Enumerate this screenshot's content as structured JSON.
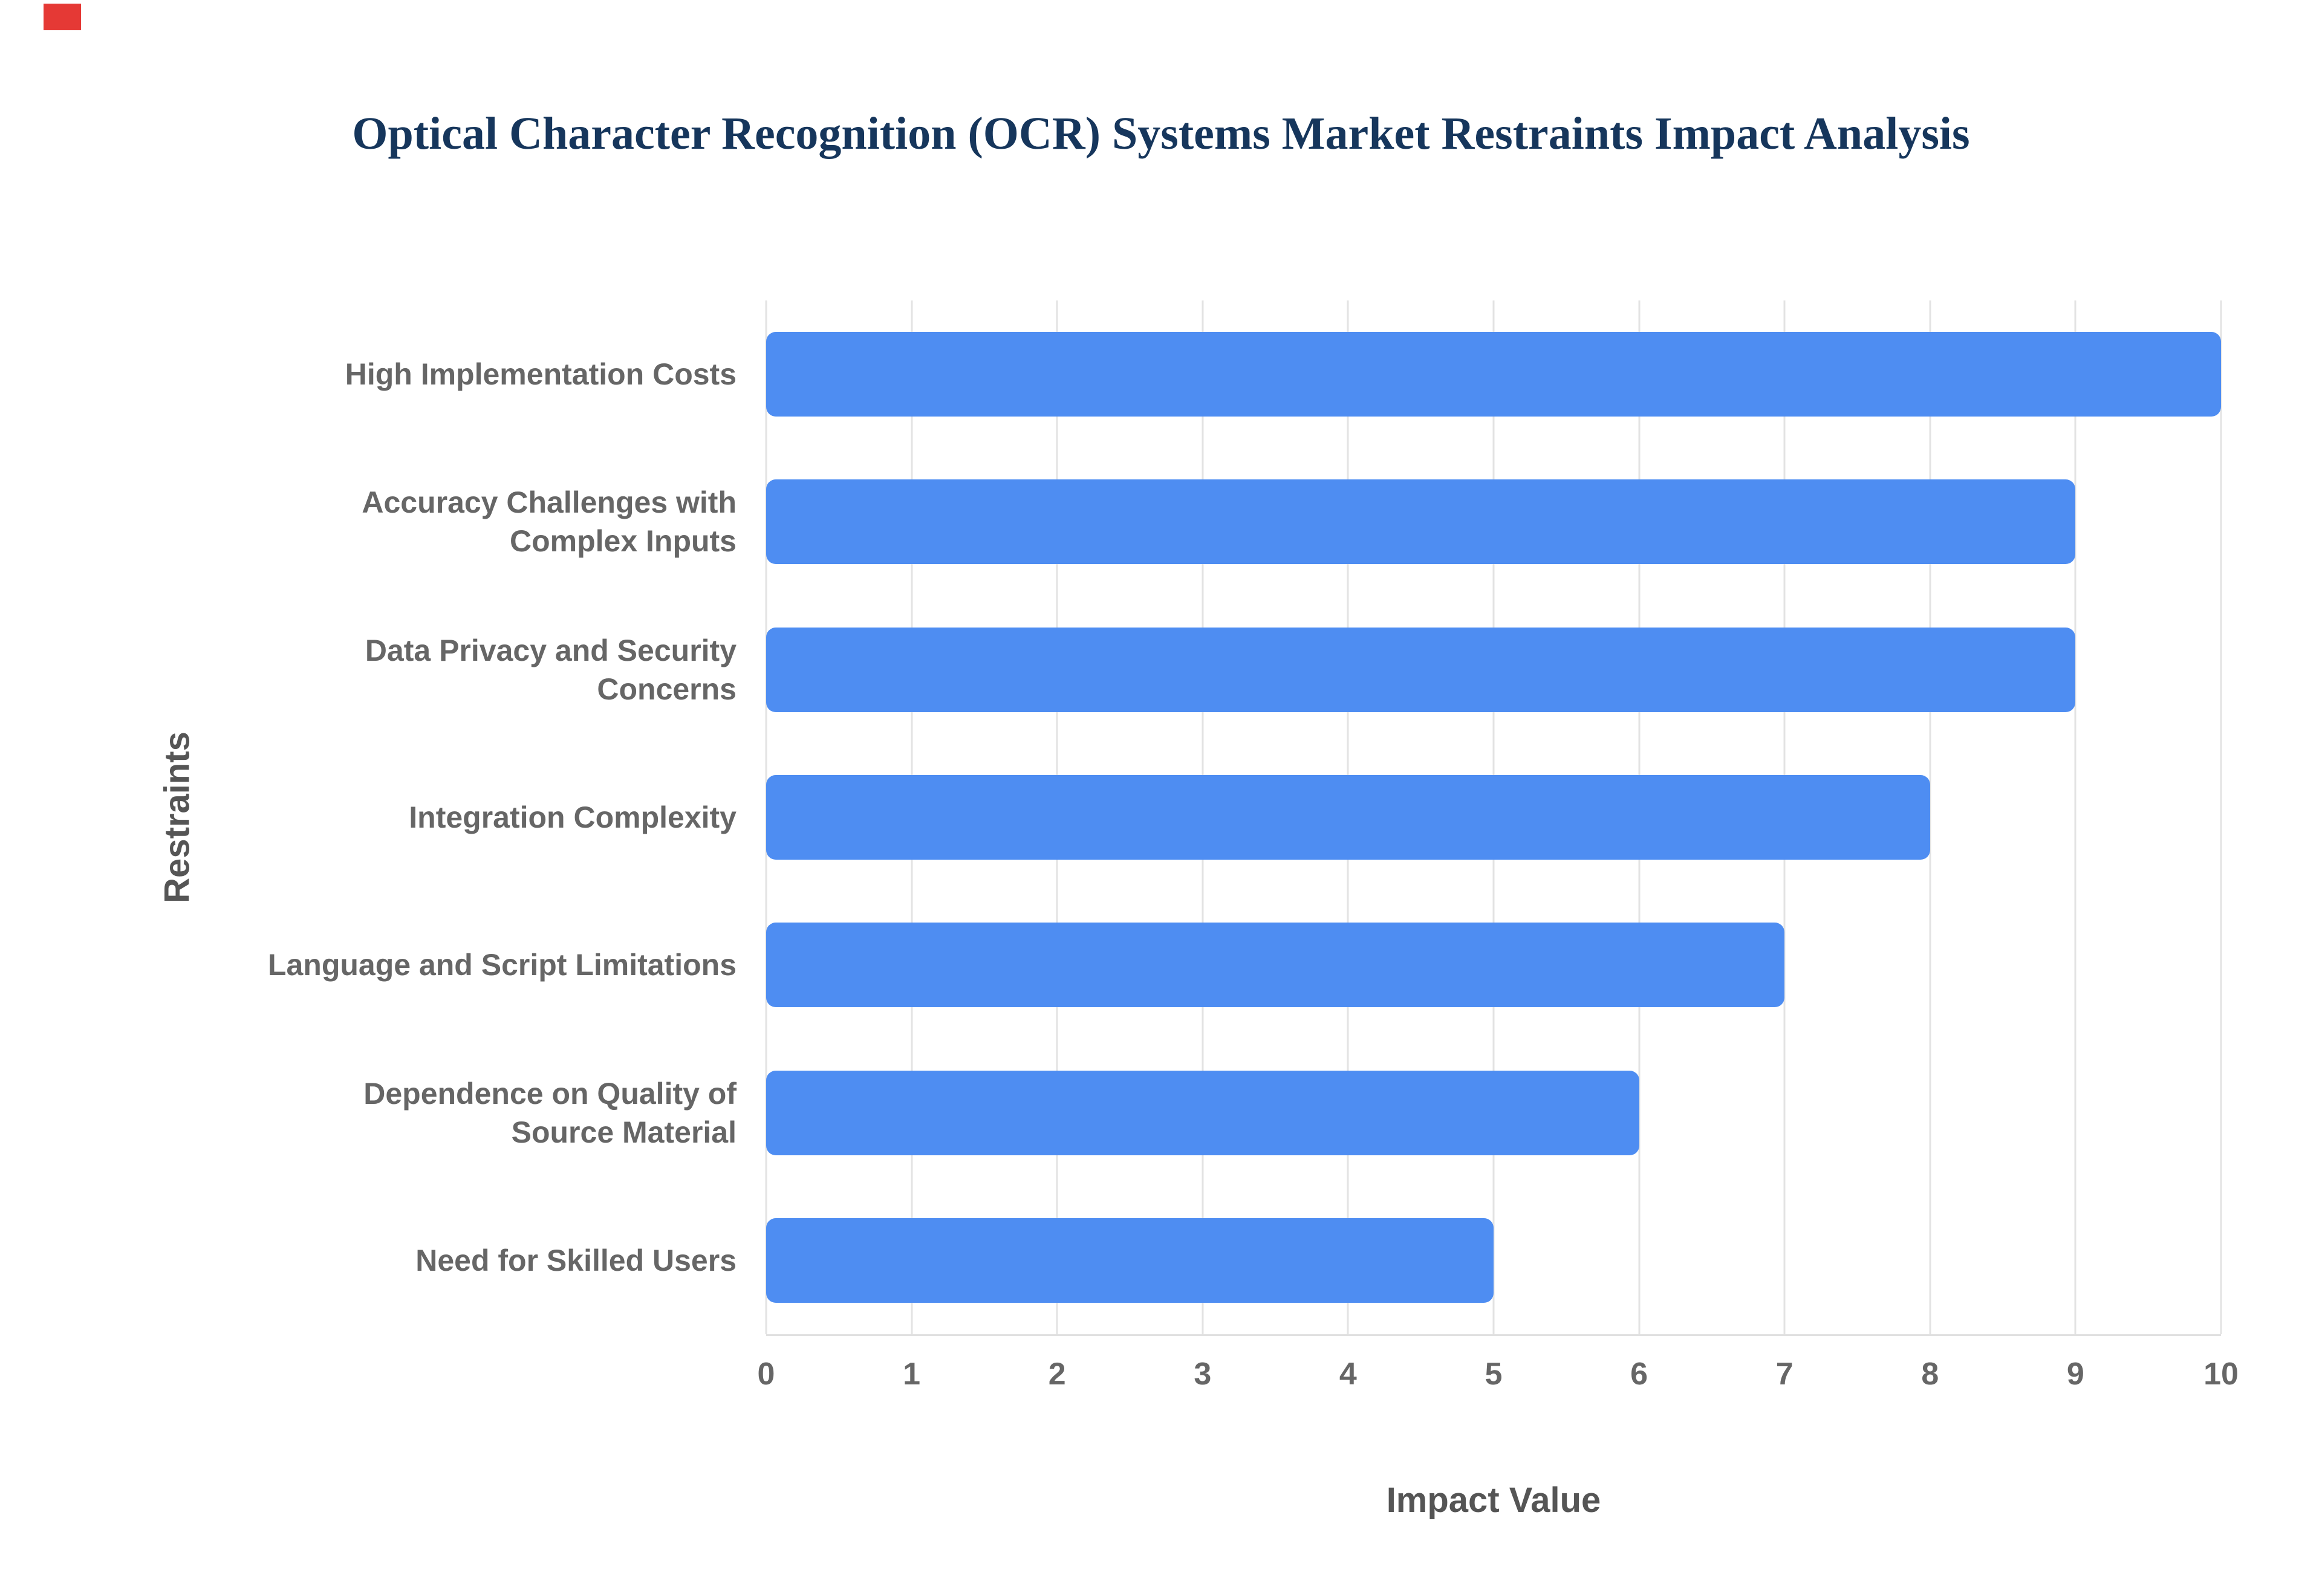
{
  "chart_data": {
    "type": "bar",
    "orientation": "horizontal",
    "title": "Optical Character Recognition (OCR) Systems Market Restraints Impact Analysis",
    "xlabel": "Impact Value",
    "ylabel": "Restraints",
    "categories": [
      "High Implementation Costs",
      "Accuracy Challenges with Complex Inputs",
      "Data Privacy and Security Concerns",
      "Integration Complexity",
      "Language and Script Limitations",
      "Dependence on Quality of Source Material",
      "Need for Skilled Users"
    ],
    "values": [
      10,
      9,
      9,
      8,
      7,
      6,
      5
    ],
    "xlim": [
      0,
      10
    ],
    "x_ticks": [
      0,
      1,
      2,
      3,
      4,
      5,
      6,
      7,
      8,
      9,
      10
    ],
    "grid": true,
    "legend": false
  },
  "colors": {
    "bar": "#4e8df2",
    "title": "#16365c",
    "axis_label": "#555555",
    "tick_label": "#666666",
    "grid": "#e3e3e3",
    "artifact": "#e53935"
  }
}
